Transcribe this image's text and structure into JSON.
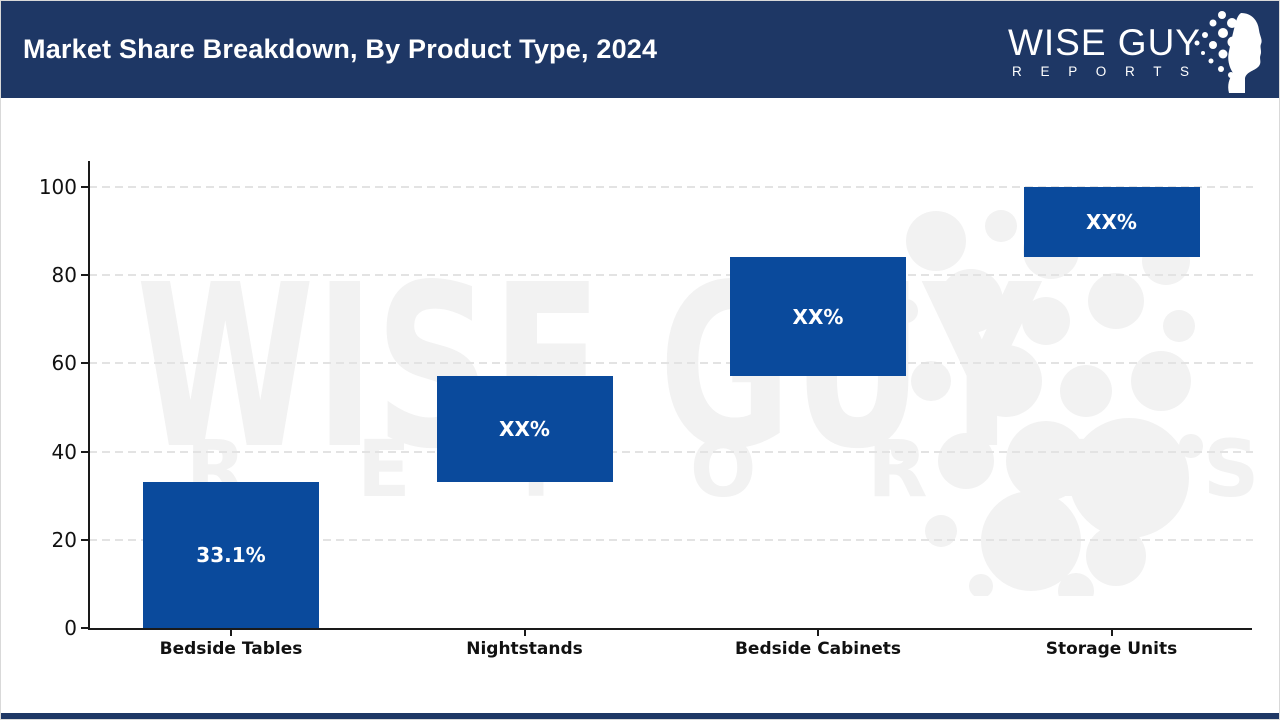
{
  "header": {
    "title": "Market Share Breakdown, By Product Type, 2024",
    "background_color": "#1e3765",
    "logo": {
      "line1": "WISE GUY",
      "line2": "R E P O R T S"
    }
  },
  "watermark": {
    "line1": "WISE GUY",
    "line2": "R E P O R T S"
  },
  "footer": {
    "bar_color": "#1e3765"
  },
  "chart_data": {
    "type": "bar",
    "subtype": "floating-waterfall",
    "title": "Market Share Breakdown, By Product Type, 2024",
    "categories": [
      "Bedside Tables",
      "Nightstands",
      "Bedside Cabinets",
      "Storage Units"
    ],
    "series": [
      {
        "name": "Market share (%)",
        "segments": [
          {
            "category": "Bedside Tables",
            "start": 0,
            "end": 33.1,
            "label": "33.1%"
          },
          {
            "category": "Nightstands",
            "start": 33.1,
            "end": 57.1,
            "label": "XX%"
          },
          {
            "category": "Bedside Cabinets",
            "start": 57.1,
            "end": 84.1,
            "label": "XX%"
          },
          {
            "category": "Storage Units",
            "start": 84.1,
            "end": 100,
            "label": "XX%"
          }
        ]
      }
    ],
    "xlabel": "",
    "ylabel": "",
    "ylim": [
      0,
      105
    ],
    "yticks": [
      0,
      20,
      40,
      60,
      80,
      100
    ],
    "grid": "horizontal-dashed",
    "legend": "none",
    "bar_color": "#0a4a9c",
    "bar_label_color": "#ffffff",
    "axis_color": "#1a1a1a",
    "gridline_color": "#e3e3e3"
  }
}
